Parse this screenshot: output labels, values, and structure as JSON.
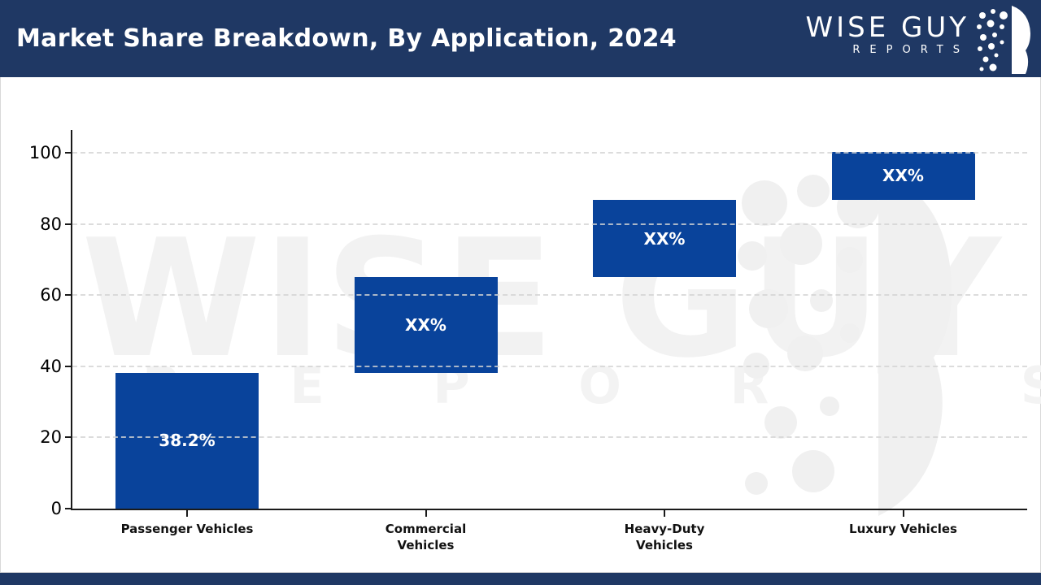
{
  "header": {
    "title": "Market Share Breakdown, By Application, 2024",
    "logo": {
      "line1": "WISE GUY",
      "line2": "REPORTS"
    }
  },
  "watermark": {
    "line1": "WISE GUY",
    "line2": "R E P O R T S"
  },
  "colors": {
    "header_bg": "#1f3864",
    "footer_bg": "#1f3864",
    "bar": "#09439b",
    "bar_label": "#ffffff",
    "gridline": "#d4d4d4",
    "axis": "#1a1a1a",
    "watermark": "#f2f2f2"
  },
  "chart_data": {
    "type": "bar",
    "subtype": "waterfall",
    "title": "Market Share Breakdown, By Application, 2024",
    "xlabel": "",
    "ylabel": "",
    "ylim": [
      0,
      106
    ],
    "yticks": [
      0,
      20,
      40,
      60,
      80,
      100
    ],
    "grid": "horizontal-dashed",
    "legend": "none",
    "categories": [
      "Passenger Vehicles",
      "Commercial\nVehicles",
      "Heavy-Duty\nVehicles",
      "Luxury Vehicles"
    ],
    "segments": [
      {
        "category": "Passenger Vehicles",
        "start": 0,
        "end": 38.2,
        "label": "38.2%"
      },
      {
        "category": "Commercial Vehicles",
        "start": 38.2,
        "end": 65.0,
        "label": "XX%"
      },
      {
        "category": "Heavy-Duty Vehicles",
        "start": 65.0,
        "end": 86.8,
        "label": "XX%"
      },
      {
        "category": "Luxury Vehicles",
        "start": 86.8,
        "end": 100.3,
        "label": "XX%"
      }
    ]
  }
}
